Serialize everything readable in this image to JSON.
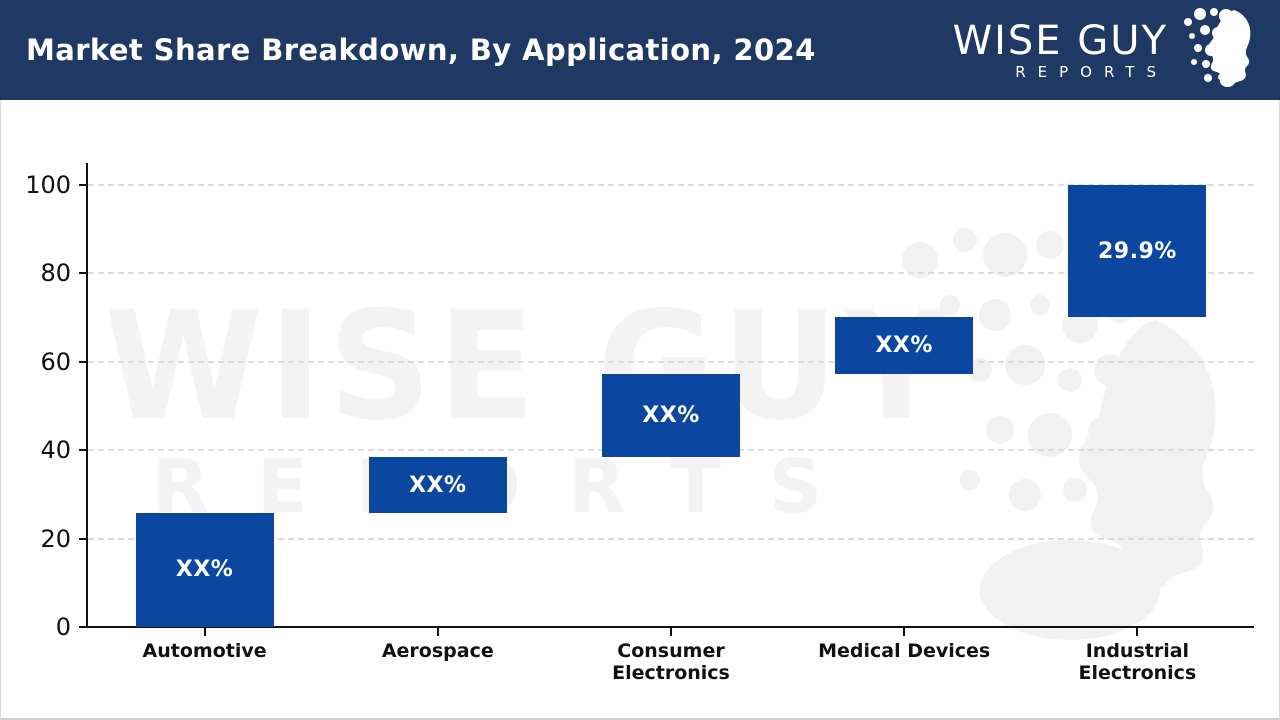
{
  "header": {
    "title": "Market Share Breakdown, By Application, 2024",
    "logo": {
      "line1": "WISE GUY",
      "line2": "REPORTS",
      "icon": "dotted-head-logo"
    }
  },
  "watermark": {
    "line1": "WISE GUY",
    "line2": "REPORTS"
  },
  "chart_data": {
    "type": "bar",
    "subtype": "waterfall",
    "title": "Market Share Breakdown, By Application, 2024",
    "categories": [
      "Automotive",
      "Aerospace",
      "Consumer Electronics",
      "Medical Devices",
      "Industrial Electronics"
    ],
    "category_label_lines": [
      [
        "Automotive"
      ],
      [
        "Aerospace"
      ],
      [
        "Consumer",
        "Electronics"
      ],
      [
        "Medical Devices"
      ],
      [
        "Industrial",
        "Electronics"
      ]
    ],
    "bars": [
      {
        "category": "Automotive",
        "start": 0,
        "end": 25.8,
        "label": "XX%"
      },
      {
        "category": "Aerospace",
        "start": 25.8,
        "end": 38.4,
        "label": "XX%"
      },
      {
        "category": "Consumer Electronics",
        "start": 38.4,
        "end": 57.2,
        "label": "XX%"
      },
      {
        "category": "Medical Devices",
        "start": 57.2,
        "end": 70.1,
        "label": "XX%"
      },
      {
        "category": "Industrial Electronics",
        "start": 70.1,
        "end": 100,
        "label": "29.9%"
      }
    ],
    "ylim": [
      0,
      100
    ],
    "yticks": [
      0,
      20,
      40,
      60,
      80,
      100
    ],
    "grid": "horizontal-dashed",
    "legend": "none",
    "bar_color": "#0b47a1",
    "bar_label_color": "#ffffff"
  },
  "colors": {
    "header_bg": "#1f3864",
    "bar": "#0b47a1",
    "grid": "#dcdcdc",
    "axis": "#111111",
    "watermark": "#f3f3f3"
  }
}
